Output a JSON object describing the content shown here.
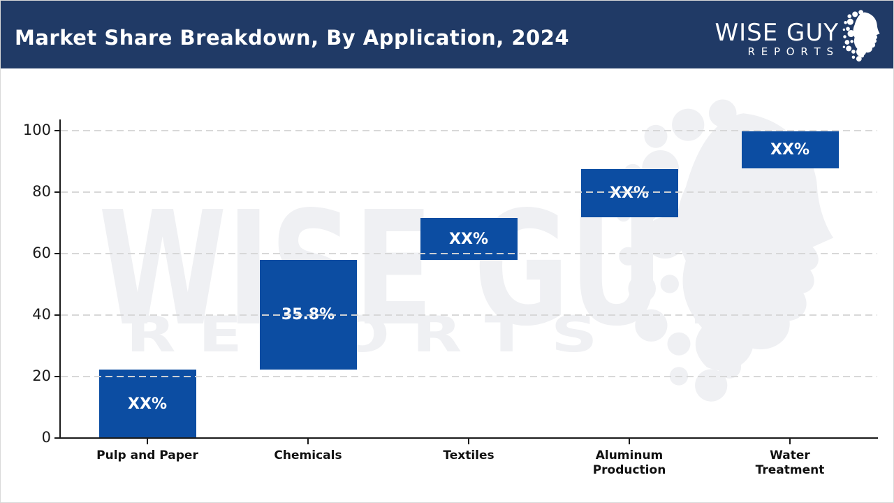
{
  "header": {
    "title": "Market Share Breakdown, By Application, 2024",
    "brand": {
      "line1": "WISE GUY",
      "line2": "R E P O R T S"
    },
    "bg_color": "#203a66"
  },
  "watermark": {
    "line1": "WISE GUY",
    "line2": "R E P O R T S"
  },
  "chart_data": {
    "type": "bar",
    "subtype": "waterfall",
    "title": "Market Share Breakdown, By Application, 2024",
    "categories": [
      "Pulp and Paper",
      "Chemicals",
      "Textiles",
      "Aluminum Production",
      "Water Treatment"
    ],
    "segments": [
      {
        "category": "Pulp and Paper",
        "start": 0,
        "end": 22.2,
        "label": "XX%"
      },
      {
        "category": "Chemicals",
        "start": 22.2,
        "end": 58.0,
        "label": "35.8%"
      },
      {
        "category": "Textiles",
        "start": 58.0,
        "end": 71.5,
        "label": "XX%"
      },
      {
        "category": "Aluminum Production",
        "start": 71.8,
        "end": 87.6,
        "label": "XX%"
      },
      {
        "category": "Water Treatment",
        "start": 87.7,
        "end": 99.8,
        "label": "XX%"
      }
    ],
    "xlabel": "",
    "ylabel": "",
    "ylim": [
      0,
      105
    ],
    "yticks": [
      0,
      20,
      40,
      60,
      80,
      100
    ],
    "grid": "horizontal-dashed",
    "legend": "none",
    "bar_color": "#0c4da2",
    "bar_label_color": "#ffffff",
    "axis_color": "#1a1a1a",
    "grid_color": "#d6d6d6",
    "watermark_color": "#eff0f3"
  }
}
